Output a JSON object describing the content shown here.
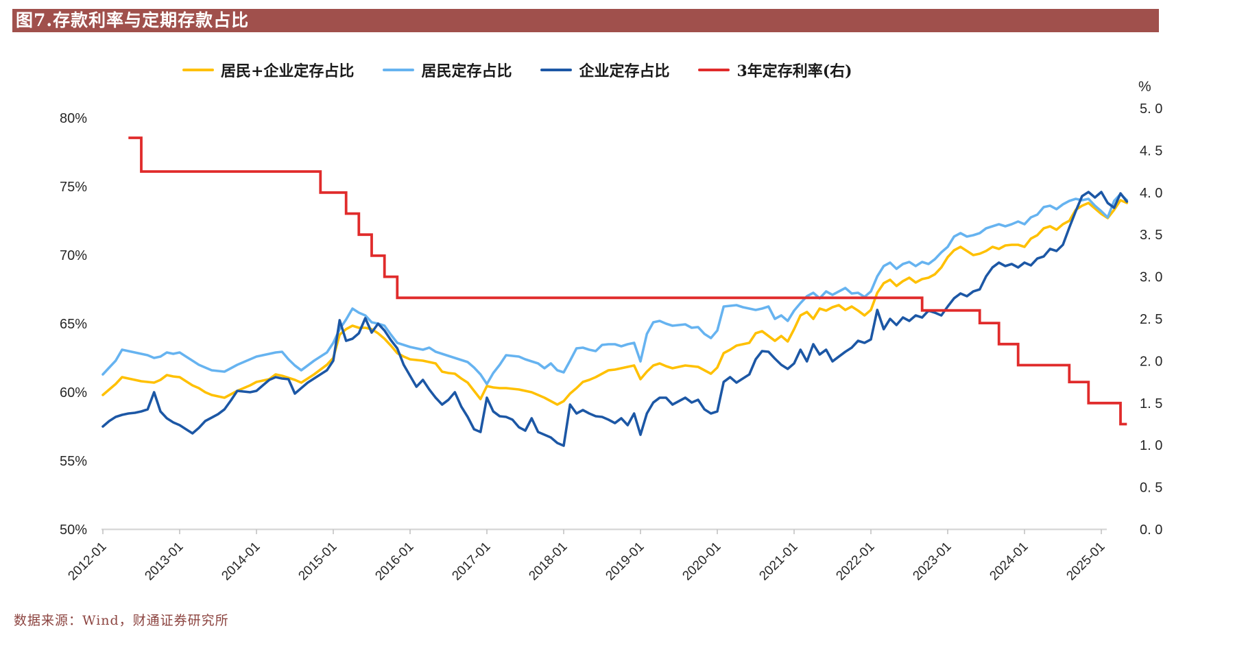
{
  "title": "图7.存款利率与定期存款占比",
  "source": "数据来源：Wind，财通证券研究所",
  "colors": {
    "title_bar_bg": "#A0504C",
    "title_text": "#ffffff",
    "combined": "#FFC000",
    "resident": "#66B3F0",
    "corporate": "#1C57A5",
    "rate": "#E02B2B",
    "axis_line": "#D9D9D9",
    "tick_mark": "#BFBFBF",
    "axis_text": "#262626",
    "source_text": "#8C4440"
  },
  "legend": [
    {
      "label": "居民+企业定存占比",
      "color": "#FFC000",
      "icon": "line-swatch"
    },
    {
      "label": "居民定存占比",
      "color": "#66B3F0",
      "icon": "line-swatch"
    },
    {
      "label": "企业定存占比",
      "color": "#1C57A5",
      "icon": "line-swatch"
    },
    {
      "label": "3年定存利率(右)",
      "color": "#E02B2B",
      "icon": "line-swatch"
    }
  ],
  "chart_data": {
    "type": "line",
    "x_start": "2012-01",
    "x_freq": "monthly",
    "x_tick_labels": [
      "2012-01",
      "2013-01",
      "2014-01",
      "2015-01",
      "2016-01",
      "2017-01",
      "2018-01",
      "2019-01",
      "2020-01",
      "2021-01",
      "2022-01",
      "2023-01",
      "2024-01",
      "2025-01"
    ],
    "left_axis": {
      "range": [
        50,
        80
      ],
      "ticks": [
        "80%",
        "75%",
        "70%",
        "65%",
        "60%",
        "55%",
        "50%"
      ],
      "tick_values": [
        80,
        75,
        70,
        65,
        60,
        55,
        50
      ]
    },
    "right_axis": {
      "unit": "%",
      "range": [
        0.0,
        5.0
      ],
      "ticks": [
        "5. 0",
        "4. 5",
        "4. 0",
        "3. 5",
        "3. 0",
        "2. 5",
        "2. 0",
        "1. 5",
        "1. 0",
        "0. 5",
        "0. 0"
      ],
      "tick_values": [
        5.0,
        4.5,
        4.0,
        3.5,
        3.0,
        2.5,
        2.0,
        1.5,
        1.0,
        0.5,
        0.0
      ]
    },
    "grid": false,
    "legend_position": "top",
    "series": [
      {
        "name": "居民+企业定存占比",
        "axis": "left",
        "color": "#FFC000",
        "values": [
          59.8,
          60.2,
          60.6,
          61.1,
          61.0,
          60.9,
          60.8,
          60.75,
          60.7,
          60.9,
          61.25,
          61.15,
          61.1,
          60.8,
          60.5,
          60.3,
          60.0,
          59.8,
          59.7,
          59.6,
          59.85,
          60.1,
          60.3,
          60.5,
          60.75,
          60.85,
          60.95,
          61.3,
          61.2,
          61.05,
          60.9,
          60.7,
          61.0,
          61.3,
          61.65,
          62.0,
          62.5,
          64.2,
          64.6,
          64.85,
          64.7,
          64.7,
          64.6,
          64.3,
          63.9,
          63.4,
          62.85,
          62.6,
          62.4,
          62.35,
          62.3,
          62.2,
          62.1,
          61.5,
          61.4,
          61.35,
          61.0,
          60.7,
          60.1,
          59.5,
          60.45,
          60.35,
          60.3,
          60.3,
          60.25,
          60.2,
          60.1,
          60.0,
          59.8,
          59.6,
          59.35,
          59.1,
          59.35,
          59.9,
          60.3,
          60.75,
          60.9,
          61.1,
          61.35,
          61.6,
          61.65,
          61.75,
          61.85,
          61.95,
          60.95,
          61.5,
          61.95,
          62.1,
          61.9,
          61.75,
          61.85,
          61.95,
          61.9,
          61.85,
          61.6,
          61.35,
          61.8,
          62.85,
          63.1,
          63.4,
          63.5,
          63.6,
          64.3,
          64.45,
          64.1,
          63.75,
          64.1,
          63.7,
          64.6,
          65.6,
          65.85,
          65.35,
          66.1,
          65.95,
          66.2,
          66.35,
          66.0,
          66.25,
          65.95,
          65.6,
          66.0,
          67.25,
          67.95,
          68.2,
          67.75,
          68.1,
          68.35,
          68.0,
          68.25,
          68.35,
          68.6,
          69.1,
          69.85,
          70.35,
          70.6,
          70.3,
          70.0,
          70.1,
          70.3,
          70.6,
          70.45,
          70.7,
          70.75,
          70.75,
          70.6,
          71.2,
          71.45,
          71.95,
          72.1,
          71.85,
          72.25,
          72.5,
          73.3,
          73.6,
          73.8,
          73.4,
          73.0,
          72.7,
          73.3,
          74.0,
          73.8
        ]
      },
      {
        "name": "居民定存占比",
        "axis": "left",
        "color": "#66B3F0",
        "values": [
          61.3,
          61.8,
          62.3,
          63.1,
          63.0,
          62.9,
          62.8,
          62.7,
          62.5,
          62.6,
          62.9,
          62.8,
          62.9,
          62.6,
          62.3,
          62.0,
          61.8,
          61.6,
          61.55,
          61.5,
          61.75,
          62.0,
          62.2,
          62.4,
          62.6,
          62.7,
          62.8,
          62.9,
          62.95,
          62.4,
          61.95,
          61.6,
          61.95,
          62.3,
          62.6,
          62.9,
          63.6,
          64.6,
          65.3,
          66.1,
          65.8,
          65.6,
          65.1,
          65.0,
          64.85,
          64.2,
          63.6,
          63.45,
          63.3,
          63.2,
          63.1,
          63.25,
          62.95,
          62.8,
          62.65,
          62.5,
          62.35,
          62.2,
          61.8,
          61.3,
          60.6,
          61.4,
          62.0,
          62.7,
          62.65,
          62.6,
          62.4,
          62.25,
          62.1,
          61.75,
          62.1,
          61.6,
          61.45,
          62.3,
          63.2,
          63.25,
          63.1,
          63.0,
          63.45,
          63.5,
          63.5,
          63.35,
          63.5,
          63.6,
          62.25,
          64.25,
          65.1,
          65.2,
          65.0,
          64.85,
          64.9,
          64.95,
          64.7,
          64.75,
          64.25,
          63.95,
          64.5,
          66.25,
          66.3,
          66.35,
          66.2,
          66.1,
          66.0,
          66.1,
          66.25,
          65.35,
          65.6,
          65.2,
          65.95,
          66.5,
          67.0,
          67.25,
          66.85,
          67.35,
          67.1,
          67.35,
          67.6,
          67.2,
          67.25,
          66.95,
          67.35,
          68.45,
          69.2,
          69.45,
          69.0,
          69.35,
          69.5,
          69.2,
          69.5,
          69.35,
          69.7,
          70.2,
          70.6,
          71.35,
          71.6,
          71.35,
          71.45,
          71.6,
          71.95,
          72.1,
          72.25,
          72.1,
          72.25,
          72.45,
          72.25,
          72.75,
          72.95,
          73.5,
          73.6,
          73.35,
          73.7,
          73.95,
          74.1,
          74.0,
          74.1,
          73.6,
          73.2,
          72.75,
          73.95,
          74.45,
          74.0
        ]
      },
      {
        "name": "企业定存占比",
        "axis": "left",
        "color": "#1C57A5",
        "values": [
          57.5,
          57.9,
          58.2,
          58.35,
          58.45,
          58.5,
          58.6,
          58.75,
          60.0,
          58.6,
          58.1,
          57.8,
          57.6,
          57.3,
          57.0,
          57.4,
          57.9,
          58.15,
          58.4,
          58.75,
          59.4,
          60.1,
          60.05,
          60.0,
          60.1,
          60.5,
          60.9,
          61.1,
          61.0,
          60.95,
          59.9,
          60.3,
          60.7,
          61.0,
          61.3,
          61.6,
          62.3,
          65.25,
          63.75,
          63.9,
          64.3,
          65.4,
          64.35,
          65.0,
          64.5,
          63.8,
          63.2,
          62.0,
          61.2,
          60.4,
          60.9,
          60.2,
          59.6,
          59.1,
          59.45,
          60.0,
          58.95,
          58.2,
          57.3,
          57.1,
          59.6,
          58.6,
          58.25,
          58.2,
          58.0,
          57.45,
          57.2,
          58.1,
          57.1,
          56.9,
          56.7,
          56.3,
          56.1,
          59.1,
          58.45,
          58.7,
          58.45,
          58.25,
          58.2,
          58.0,
          57.75,
          58.1,
          57.6,
          58.45,
          56.9,
          58.45,
          59.25,
          59.6,
          59.6,
          59.1,
          59.35,
          59.6,
          59.25,
          59.45,
          58.75,
          58.45,
          58.6,
          60.75,
          61.1,
          60.7,
          61.0,
          61.3,
          62.4,
          63.0,
          62.95,
          62.45,
          62.0,
          61.7,
          62.1,
          63.1,
          62.25,
          63.5,
          62.75,
          63.1,
          62.25,
          62.6,
          62.95,
          63.25,
          63.75,
          63.6,
          63.85,
          66.0,
          64.6,
          65.35,
          64.9,
          65.45,
          65.2,
          65.6,
          65.45,
          65.95,
          65.8,
          65.6,
          66.25,
          66.85,
          67.2,
          67.0,
          67.35,
          67.5,
          68.45,
          69.1,
          69.45,
          69.2,
          69.35,
          69.1,
          69.45,
          69.25,
          69.75,
          69.9,
          70.45,
          70.3,
          70.75,
          72.0,
          73.2,
          74.3,
          74.6,
          74.2,
          74.6,
          73.8,
          73.45,
          74.5,
          73.9
        ]
      },
      {
        "name": "3年定存利率(右)",
        "axis": "right",
        "color": "#E02B2B",
        "style": "step",
        "steps": [
          [
            "2012-05",
            4.65
          ],
          [
            "2012-07",
            4.25
          ],
          [
            "2014-11",
            4.0
          ],
          [
            "2015-03",
            3.75
          ],
          [
            "2015-05",
            3.5
          ],
          [
            "2015-07",
            3.25
          ],
          [
            "2015-09",
            3.0
          ],
          [
            "2015-11",
            2.75
          ],
          [
            "2022-09",
            2.6
          ],
          [
            "2023-06",
            2.45
          ],
          [
            "2023-09",
            2.2
          ],
          [
            "2023-12",
            1.95
          ],
          [
            "2024-08",
            1.75
          ],
          [
            "2024-11",
            1.5
          ],
          [
            "2025-04",
            1.25
          ]
        ],
        "end": "2025-05"
      }
    ]
  }
}
